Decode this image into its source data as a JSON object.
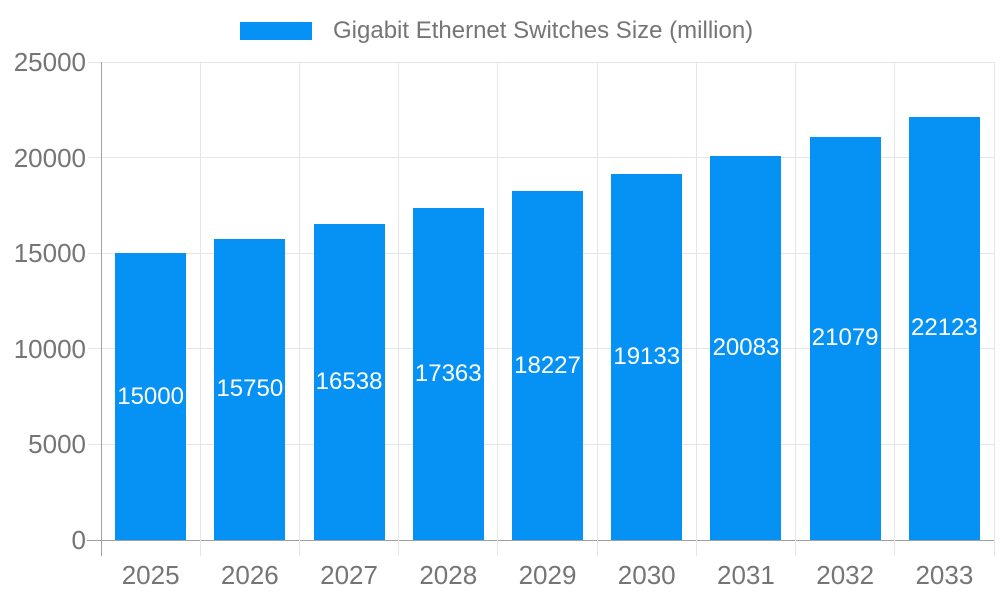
{
  "chart_data": {
    "type": "bar",
    "title": "Gigabit Ethernet Switches Size (million)",
    "legend_position": "top",
    "categories": [
      "2025",
      "2026",
      "2027",
      "2028",
      "2029",
      "2030",
      "2031",
      "2032",
      "2033"
    ],
    "series": [
      {
        "name": "Gigabit Ethernet Switches Size (million)",
        "values": [
          15000,
          15750,
          16538,
          17363,
          18227,
          19133,
          20083,
          21079,
          22123
        ]
      }
    ],
    "values": [
      15000,
      15750,
      16538,
      17363,
      18227,
      19133,
      20083,
      21079,
      22123
    ],
    "value_labels": [
      "15000",
      "15750",
      "16538",
      "17363",
      "18227",
      "19133",
      "20083",
      "21079",
      "22123"
    ],
    "xlabel": "",
    "ylabel": "",
    "ylim": [
      0,
      25000
    ],
    "y_ticks": [
      0,
      5000,
      10000,
      15000,
      20000,
      25000
    ],
    "grid": true,
    "colors": {
      "bar": "#0692f4",
      "value_label": "#ffffff",
      "axis_text": "#757575",
      "grid_line": "#e6e6e6",
      "axis_line": "#a0a0a0",
      "background": "#ffffff"
    }
  }
}
